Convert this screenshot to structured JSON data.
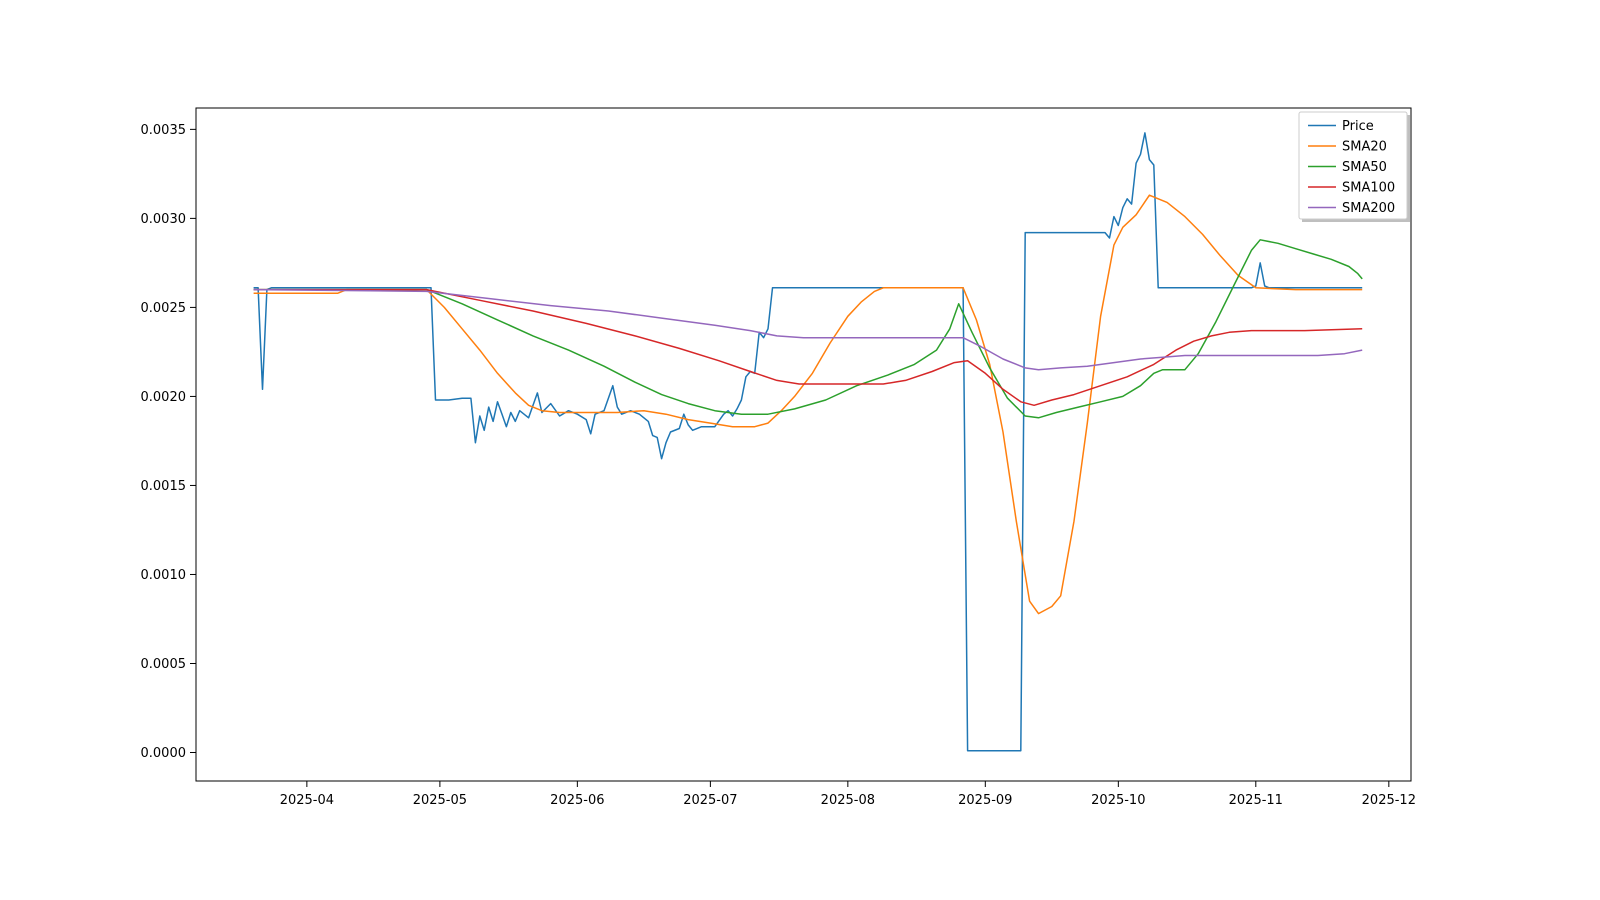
{
  "figure": {
    "background": "#ffffff",
    "frame_color": "#000000"
  },
  "chart_data": {
    "type": "line",
    "title": "",
    "xlabel": "",
    "ylabel": "",
    "grid": false,
    "legend": {
      "position": "upper right",
      "entries": [
        "Price",
        "SMA20",
        "SMA50",
        "SMA100",
        "SMA200"
      ]
    },
    "x_ticks": [
      "2025-04",
      "2025-05",
      "2025-06",
      "2025-07",
      "2025-08",
      "2025-09",
      "2025-10",
      "2025-11",
      "2025-12"
    ],
    "y_ticks": [
      "0.0000",
      "0.0005",
      "0.0010",
      "0.0015",
      "0.0020",
      "0.0025",
      "0.0030",
      "0.0035"
    ],
    "xlim": [
      "2025-03-07",
      "2025-12-06"
    ],
    "ylim": [
      -0.00016,
      0.00362
    ],
    "series": [
      {
        "name": "Price",
        "color": "#1f77b4",
        "points": [
          [
            "2025-03-20",
            0.00261
          ],
          [
            "2025-03-21",
            0.00261
          ],
          [
            "2025-03-22",
            0.00204
          ],
          [
            "2025-03-23",
            0.0026
          ],
          [
            "2025-03-24",
            0.00261
          ],
          [
            "2025-04-29",
            0.00261
          ],
          [
            "2025-04-30",
            0.00198
          ],
          [
            "2025-05-03",
            0.00198
          ],
          [
            "2025-05-06",
            0.00199
          ],
          [
            "2025-05-08",
            0.00199
          ],
          [
            "2025-05-09",
            0.00174
          ],
          [
            "2025-05-10",
            0.00189
          ],
          [
            "2025-05-11",
            0.00181
          ],
          [
            "2025-05-12",
            0.00194
          ],
          [
            "2025-05-13",
            0.00186
          ],
          [
            "2025-05-14",
            0.00197
          ],
          [
            "2025-05-15",
            0.0019
          ],
          [
            "2025-05-16",
            0.00183
          ],
          [
            "2025-05-17",
            0.00191
          ],
          [
            "2025-05-18",
            0.00186
          ],
          [
            "2025-05-19",
            0.00192
          ],
          [
            "2025-05-21",
            0.00188
          ],
          [
            "2025-05-23",
            0.00202
          ],
          [
            "2025-05-24",
            0.00191
          ],
          [
            "2025-05-26",
            0.00196
          ],
          [
            "2025-05-28",
            0.00189
          ],
          [
            "2025-05-30",
            0.00192
          ],
          [
            "2025-06-01",
            0.0019
          ],
          [
            "2025-06-03",
            0.00187
          ],
          [
            "2025-06-04",
            0.00179
          ],
          [
            "2025-06-05",
            0.0019
          ],
          [
            "2025-06-07",
            0.00192
          ],
          [
            "2025-06-09",
            0.00206
          ],
          [
            "2025-06-10",
            0.00194
          ],
          [
            "2025-06-11",
            0.0019
          ],
          [
            "2025-06-13",
            0.00192
          ],
          [
            "2025-06-15",
            0.0019
          ],
          [
            "2025-06-17",
            0.00186
          ],
          [
            "2025-06-18",
            0.00178
          ],
          [
            "2025-06-19",
            0.00177
          ],
          [
            "2025-06-20",
            0.00165
          ],
          [
            "2025-06-21",
            0.00174
          ],
          [
            "2025-06-22",
            0.0018
          ],
          [
            "2025-06-24",
            0.00182
          ],
          [
            "2025-06-25",
            0.0019
          ],
          [
            "2025-06-26",
            0.00184
          ],
          [
            "2025-06-27",
            0.00181
          ],
          [
            "2025-06-29",
            0.00183
          ],
          [
            "2025-07-02",
            0.00183
          ],
          [
            "2025-07-04",
            0.0019
          ],
          [
            "2025-07-05",
            0.00192
          ],
          [
            "2025-07-06",
            0.00189
          ],
          [
            "2025-07-07",
            0.00193
          ],
          [
            "2025-07-08",
            0.00198
          ],
          [
            "2025-07-09",
            0.00211
          ],
          [
            "2025-07-10",
            0.00214
          ],
          [
            "2025-07-11",
            0.00213
          ],
          [
            "2025-07-12",
            0.00236
          ],
          [
            "2025-07-13",
            0.00233
          ],
          [
            "2025-07-14",
            0.00238
          ],
          [
            "2025-07-15",
            0.00261
          ],
          [
            "2025-08-27",
            0.00261
          ],
          [
            "2025-08-28",
            1e-05
          ],
          [
            "2025-09-09",
            1e-05
          ],
          [
            "2025-09-10",
            0.00292
          ],
          [
            "2025-09-28",
            0.00292
          ],
          [
            "2025-09-29",
            0.00289
          ],
          [
            "2025-09-30",
            0.00301
          ],
          [
            "2025-10-01",
            0.00296
          ],
          [
            "2025-10-02",
            0.00306
          ],
          [
            "2025-10-03",
            0.00311
          ],
          [
            "2025-10-04",
            0.00308
          ],
          [
            "2025-10-05",
            0.00331
          ],
          [
            "2025-10-06",
            0.00336
          ],
          [
            "2025-10-07",
            0.00348
          ],
          [
            "2025-10-08",
            0.00333
          ],
          [
            "2025-10-09",
            0.0033
          ],
          [
            "2025-10-10",
            0.00261
          ],
          [
            "2025-10-31",
            0.00261
          ],
          [
            "2025-11-01",
            0.00262
          ],
          [
            "2025-11-02",
            0.00275
          ],
          [
            "2025-11-03",
            0.00262
          ],
          [
            "2025-11-04",
            0.00261
          ],
          [
            "2025-11-25",
            0.00261
          ]
        ]
      },
      {
        "name": "SMA20",
        "color": "#ff7f0e",
        "points": [
          [
            "2025-03-20",
            0.00258
          ],
          [
            "2025-04-08",
            0.00258
          ],
          [
            "2025-04-10",
            0.0026
          ],
          [
            "2025-04-28",
            0.0026
          ],
          [
            "2025-05-02",
            0.0025
          ],
          [
            "2025-05-06",
            0.00238
          ],
          [
            "2025-05-10",
            0.00226
          ],
          [
            "2025-05-14",
            0.00213
          ],
          [
            "2025-05-18",
            0.00202
          ],
          [
            "2025-05-21",
            0.00195
          ],
          [
            "2025-05-24",
            0.00192
          ],
          [
            "2025-05-28",
            0.00191
          ],
          [
            "2025-06-04",
            0.00191
          ],
          [
            "2025-06-10",
            0.00191
          ],
          [
            "2025-06-16",
            0.00192
          ],
          [
            "2025-06-21",
            0.0019
          ],
          [
            "2025-06-26",
            0.00187
          ],
          [
            "2025-07-01",
            0.00185
          ],
          [
            "2025-07-06",
            0.00183
          ],
          [
            "2025-07-11",
            0.00183
          ],
          [
            "2025-07-14",
            0.00185
          ],
          [
            "2025-07-17",
            0.00192
          ],
          [
            "2025-07-20",
            0.002
          ],
          [
            "2025-07-24",
            0.00213
          ],
          [
            "2025-07-28",
            0.0023
          ],
          [
            "2025-08-01",
            0.00245
          ],
          [
            "2025-08-04",
            0.00253
          ],
          [
            "2025-08-07",
            0.00259
          ],
          [
            "2025-08-09",
            0.00261
          ],
          [
            "2025-08-27",
            0.00261
          ],
          [
            "2025-08-30",
            0.00243
          ],
          [
            "2025-09-02",
            0.00218
          ],
          [
            "2025-09-05",
            0.0018
          ],
          [
            "2025-09-08",
            0.0013
          ],
          [
            "2025-09-11",
            0.00085
          ],
          [
            "2025-09-13",
            0.00078
          ],
          [
            "2025-09-16",
            0.00082
          ],
          [
            "2025-09-18",
            0.00088
          ],
          [
            "2025-09-21",
            0.0013
          ],
          [
            "2025-09-24",
            0.00185
          ],
          [
            "2025-09-27",
            0.00245
          ],
          [
            "2025-09-30",
            0.00285
          ],
          [
            "2025-10-02",
            0.00295
          ],
          [
            "2025-10-05",
            0.00302
          ],
          [
            "2025-10-08",
            0.00313
          ],
          [
            "2025-10-12",
            0.00309
          ],
          [
            "2025-10-16",
            0.00301
          ],
          [
            "2025-10-20",
            0.00291
          ],
          [
            "2025-10-24",
            0.00279
          ],
          [
            "2025-10-28",
            0.00268
          ],
          [
            "2025-11-01",
            0.00261
          ],
          [
            "2025-11-10",
            0.0026
          ],
          [
            "2025-11-25",
            0.0026
          ]
        ]
      },
      {
        "name": "SMA50",
        "color": "#2ca02c",
        "points": [
          [
            "2025-03-20",
            0.0026
          ],
          [
            "2025-04-28",
            0.0026
          ],
          [
            "2025-05-06",
            0.00252
          ],
          [
            "2025-05-14",
            0.00243
          ],
          [
            "2025-05-22",
            0.00234
          ],
          [
            "2025-05-30",
            0.00226
          ],
          [
            "2025-06-07",
            0.00217
          ],
          [
            "2025-06-14",
            0.00208
          ],
          [
            "2025-06-20",
            0.00201
          ],
          [
            "2025-06-26",
            0.00196
          ],
          [
            "2025-07-02",
            0.00192
          ],
          [
            "2025-07-08",
            0.0019
          ],
          [
            "2025-07-14",
            0.0019
          ],
          [
            "2025-07-20",
            0.00193
          ],
          [
            "2025-07-27",
            0.00198
          ],
          [
            "2025-08-03",
            0.00206
          ],
          [
            "2025-08-10",
            0.00212
          ],
          [
            "2025-08-16",
            0.00218
          ],
          [
            "2025-08-21",
            0.00226
          ],
          [
            "2025-08-24",
            0.00238
          ],
          [
            "2025-08-26",
            0.00252
          ],
          [
            "2025-08-29",
            0.00236
          ],
          [
            "2025-09-02",
            0.00216
          ],
          [
            "2025-09-06",
            0.00199
          ],
          [
            "2025-09-10",
            0.00189
          ],
          [
            "2025-09-13",
            0.00188
          ],
          [
            "2025-09-17",
            0.00191
          ],
          [
            "2025-09-22",
            0.00194
          ],
          [
            "2025-09-27",
            0.00197
          ],
          [
            "2025-10-02",
            0.002
          ],
          [
            "2025-10-06",
            0.00206
          ],
          [
            "2025-10-09",
            0.00213
          ],
          [
            "2025-10-11",
            0.00215
          ],
          [
            "2025-10-16",
            0.00215
          ],
          [
            "2025-10-19",
            0.00224
          ],
          [
            "2025-10-23",
            0.00242
          ],
          [
            "2025-10-27",
            0.00262
          ],
          [
            "2025-10-31",
            0.00282
          ],
          [
            "2025-11-02",
            0.00288
          ],
          [
            "2025-11-06",
            0.00286
          ],
          [
            "2025-11-10",
            0.00283
          ],
          [
            "2025-11-14",
            0.0028
          ],
          [
            "2025-11-18",
            0.00277
          ],
          [
            "2025-11-22",
            0.00273
          ],
          [
            "2025-11-24",
            0.00269
          ],
          [
            "2025-11-25",
            0.00266
          ]
        ]
      },
      {
        "name": "SMA100",
        "color": "#d62728",
        "points": [
          [
            "2025-03-20",
            0.0026
          ],
          [
            "2025-04-28",
            0.0026
          ],
          [
            "2025-05-10",
            0.00254
          ],
          [
            "2025-05-22",
            0.00248
          ],
          [
            "2025-06-03",
            0.00241
          ],
          [
            "2025-06-14",
            0.00234
          ],
          [
            "2025-06-24",
            0.00227
          ],
          [
            "2025-07-03",
            0.0022
          ],
          [
            "2025-07-10",
            0.00214
          ],
          [
            "2025-07-16",
            0.00209
          ],
          [
            "2025-07-21",
            0.00207
          ],
          [
            "2025-08-01",
            0.00207
          ],
          [
            "2025-08-09",
            0.00207
          ],
          [
            "2025-08-14",
            0.00209
          ],
          [
            "2025-08-20",
            0.00214
          ],
          [
            "2025-08-25",
            0.00219
          ],
          [
            "2025-08-28",
            0.0022
          ],
          [
            "2025-09-01",
            0.00213
          ],
          [
            "2025-09-05",
            0.00204
          ],
          [
            "2025-09-09",
            0.00197
          ],
          [
            "2025-09-12",
            0.00195
          ],
          [
            "2025-09-16",
            0.00198
          ],
          [
            "2025-09-21",
            0.00201
          ],
          [
            "2025-09-27",
            0.00206
          ],
          [
            "2025-10-03",
            0.00211
          ],
          [
            "2025-10-09",
            0.00218
          ],
          [
            "2025-10-14",
            0.00226
          ],
          [
            "2025-10-18",
            0.00231
          ],
          [
            "2025-10-22",
            0.00234
          ],
          [
            "2025-10-26",
            0.00236
          ],
          [
            "2025-10-31",
            0.00237
          ],
          [
            "2025-11-12",
            0.00237
          ],
          [
            "2025-11-25",
            0.00238
          ]
        ]
      },
      {
        "name": "SMA200",
        "color": "#9467bd",
        "points": [
          [
            "2025-03-20",
            0.0026
          ],
          [
            "2025-04-28",
            0.00259
          ],
          [
            "2025-05-12",
            0.00255
          ],
          [
            "2025-05-26",
            0.00251
          ],
          [
            "2025-06-08",
            0.00248
          ],
          [
            "2025-06-20",
            0.00244
          ],
          [
            "2025-07-02",
            0.0024
          ],
          [
            "2025-07-10",
            0.00237
          ],
          [
            "2025-07-16",
            0.00234
          ],
          [
            "2025-07-22",
            0.00233
          ],
          [
            "2025-08-05",
            0.00233
          ],
          [
            "2025-08-18",
            0.00233
          ],
          [
            "2025-08-27",
            0.00233
          ],
          [
            "2025-08-31",
            0.00228
          ],
          [
            "2025-09-05",
            0.00221
          ],
          [
            "2025-09-10",
            0.00216
          ],
          [
            "2025-09-13",
            0.00215
          ],
          [
            "2025-09-18",
            0.00216
          ],
          [
            "2025-09-24",
            0.00217
          ],
          [
            "2025-09-30",
            0.00219
          ],
          [
            "2025-10-06",
            0.00221
          ],
          [
            "2025-10-11",
            0.00222
          ],
          [
            "2025-10-16",
            0.00223
          ],
          [
            "2025-10-24",
            0.00223
          ],
          [
            "2025-11-05",
            0.00223
          ],
          [
            "2025-11-15",
            0.00223
          ],
          [
            "2025-11-21",
            0.00224
          ],
          [
            "2025-11-25",
            0.00226
          ]
        ]
      }
    ]
  }
}
